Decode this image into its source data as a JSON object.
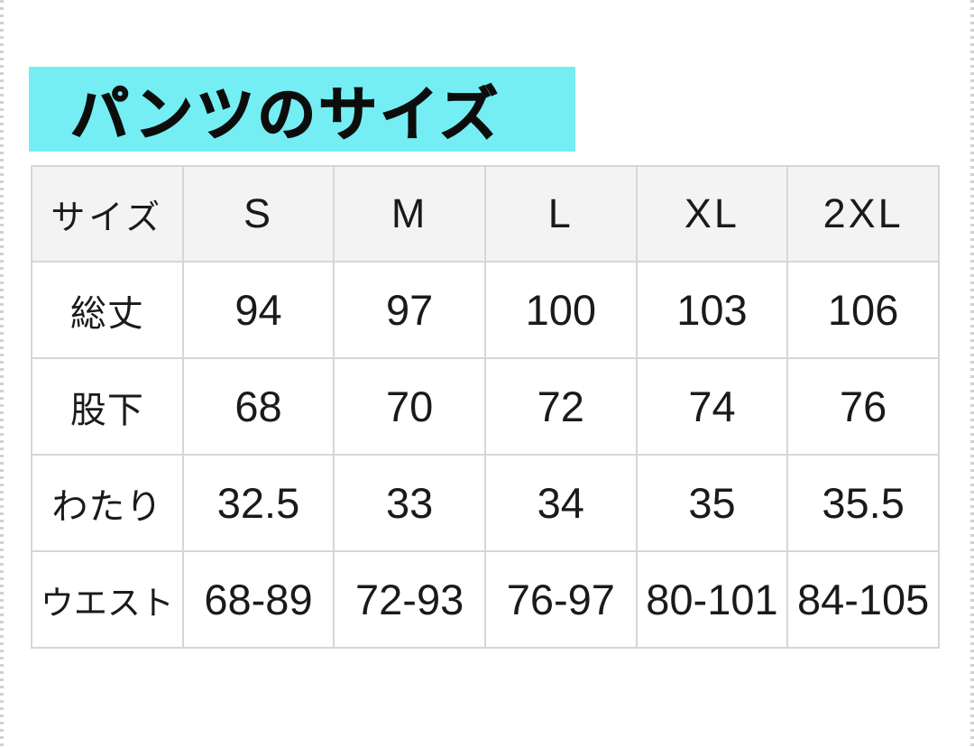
{
  "header": {
    "title": "パンツのサイズ"
  },
  "table": {
    "header": [
      "サイズ",
      "S",
      "M",
      "L",
      "XL",
      "2XL"
    ],
    "rows": [
      {
        "label": "総丈",
        "values": [
          "94",
          "97",
          "100",
          "103",
          "106"
        ]
      },
      {
        "label": "股下",
        "values": [
          "68",
          "70",
          "72",
          "74",
          "76"
        ]
      },
      {
        "label": "わたり",
        "values": [
          "32.5",
          "33",
          "34",
          "35",
          "35.5"
        ]
      },
      {
        "label": "ウエスト",
        "values": [
          "68-89",
          "72-93",
          "76-97",
          "80-101",
          "84-105"
        ]
      }
    ]
  },
  "colors": {
    "title_highlight": "#74EEF3",
    "header_row_bg": "#F3F3F3",
    "cell_border": "#D6D6D6",
    "text": "#1A1A1A",
    "page_bg": "#FFFFFF",
    "edge_perforation": "#C2C2C2"
  },
  "chart_data": {
    "type": "table",
    "title": "パンツのサイズ",
    "columns": [
      "サイズ",
      "S",
      "M",
      "L",
      "XL",
      "2XL"
    ],
    "rows": [
      [
        "総丈",
        94,
        97,
        100,
        103,
        106
      ],
      [
        "股下",
        68,
        70,
        72,
        74,
        76
      ],
      [
        "わたり",
        32.5,
        33,
        34,
        35,
        35.5
      ],
      [
        "ウエスト",
        "68-89",
        "72-93",
        "76-97",
        "80-101",
        "84-105"
      ]
    ],
    "layout": {
      "header_row_shaded": true,
      "grid": true,
      "equal_columns": 6,
      "title_highlight_color": "#74EEF3"
    }
  }
}
